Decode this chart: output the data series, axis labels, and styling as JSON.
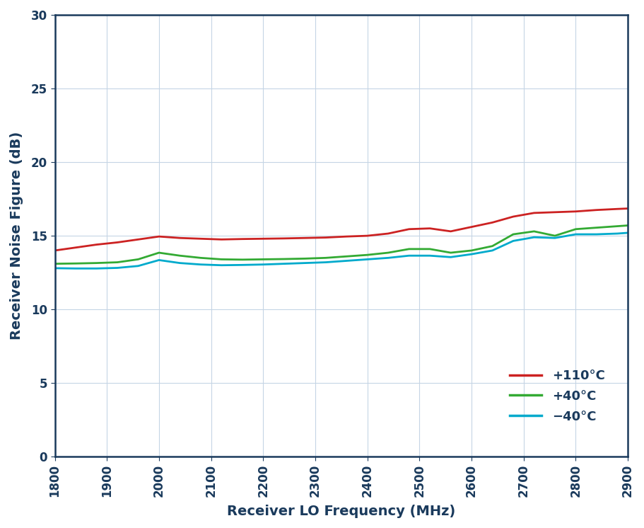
{
  "title": "",
  "xlabel": "Receiver LO Frequency (MHz)",
  "ylabel": "Receiver Noise Figure (dB)",
  "xlim": [
    1800,
    2900
  ],
  "ylim": [
    0,
    30
  ],
  "xticks": [
    1800,
    1900,
    2000,
    2100,
    2200,
    2300,
    2400,
    2500,
    2600,
    2700,
    2800,
    2900
  ],
  "yticks": [
    0,
    5,
    10,
    15,
    20,
    25,
    30
  ],
  "background_color": "#ffffff",
  "grid_color": "#c5d5e5",
  "x": [
    1800,
    1840,
    1880,
    1920,
    1960,
    2000,
    2040,
    2080,
    2120,
    2160,
    2200,
    2240,
    2280,
    2320,
    2360,
    2400,
    2440,
    2480,
    2520,
    2560,
    2600,
    2640,
    2680,
    2720,
    2760,
    2800,
    2840,
    2880,
    2900
  ],
  "red_110C": [
    14.0,
    14.2,
    14.4,
    14.55,
    14.75,
    14.95,
    14.85,
    14.8,
    14.75,
    14.78,
    14.8,
    14.82,
    14.85,
    14.88,
    14.95,
    15.0,
    15.15,
    15.45,
    15.5,
    15.3,
    15.6,
    15.9,
    16.3,
    16.55,
    16.6,
    16.65,
    16.75,
    16.82,
    16.85
  ],
  "green_40C": [
    13.1,
    13.12,
    13.15,
    13.2,
    13.4,
    13.85,
    13.65,
    13.5,
    13.4,
    13.38,
    13.4,
    13.42,
    13.45,
    13.5,
    13.6,
    13.7,
    13.85,
    14.1,
    14.1,
    13.85,
    14.0,
    14.3,
    15.1,
    15.3,
    15.0,
    15.45,
    15.55,
    15.65,
    15.7
  ],
  "cyan_m40C": [
    12.8,
    12.78,
    12.78,
    12.82,
    12.95,
    13.35,
    13.15,
    13.05,
    13.0,
    13.02,
    13.05,
    13.1,
    13.15,
    13.2,
    13.3,
    13.4,
    13.5,
    13.65,
    13.65,
    13.55,
    13.75,
    14.0,
    14.65,
    14.9,
    14.85,
    15.1,
    15.1,
    15.15,
    15.2
  ],
  "line_color_red": "#cc2222",
  "line_color_green": "#33aa33",
  "line_color_cyan": "#00aacc",
  "line_width": 2.0,
  "legend_labels": [
    "+110°C",
    "+40°C",
    "−40°C"
  ],
  "axis_color": "#1a3a5c",
  "label_fontsize": 14,
  "tick_fontsize": 12,
  "legend_fontsize": 13
}
